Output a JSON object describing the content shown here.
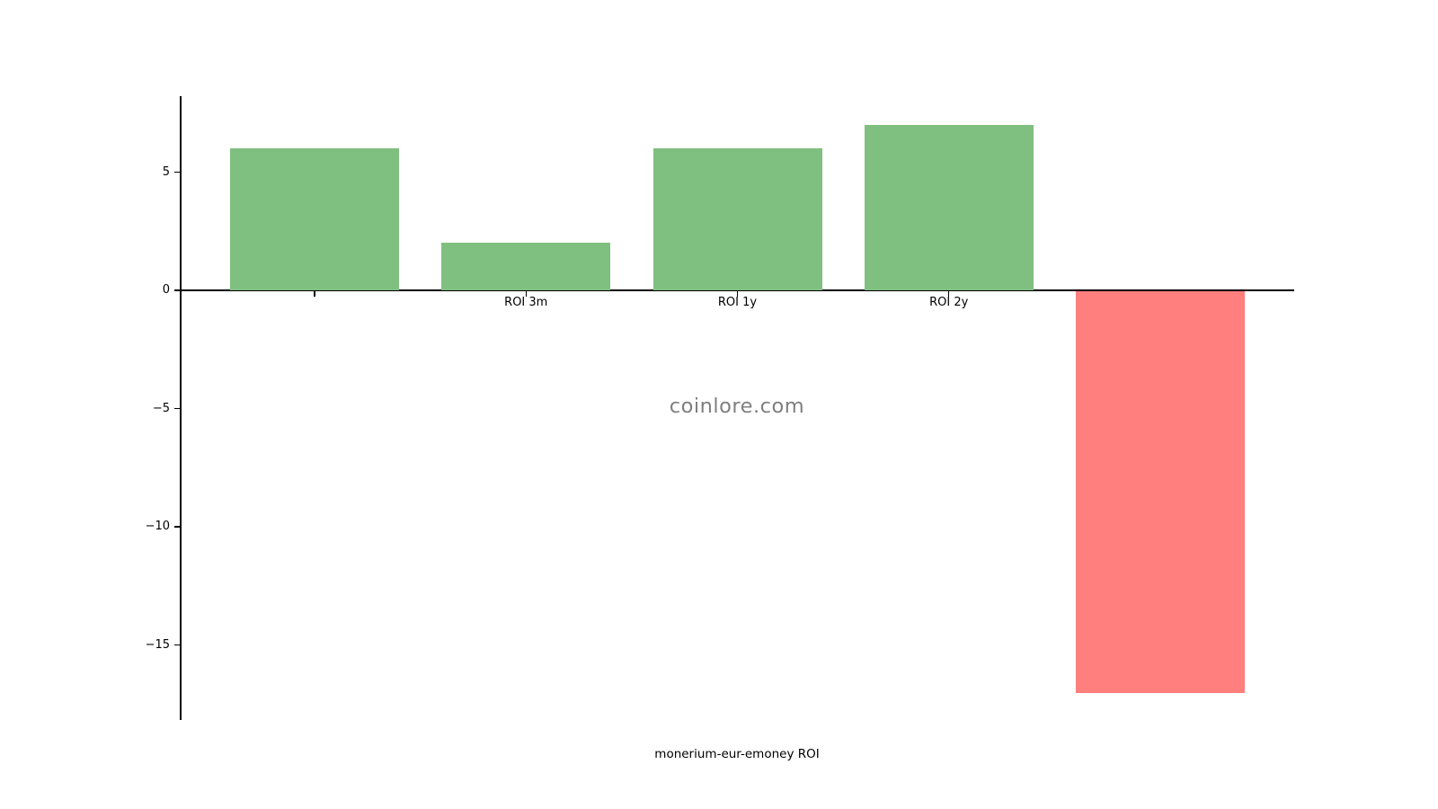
{
  "watermark": {
    "text": "coinlore.com",
    "color": "#7f7f7f"
  },
  "chart_data": {
    "type": "bar",
    "title": "monerium-eur-emoney ROI",
    "title_position": "bottom",
    "categories": [
      "",
      "ROI 3m",
      "ROI 1y",
      "ROI 2y",
      ""
    ],
    "values": [
      6,
      2,
      6,
      7,
      -17
    ],
    "yticks": {
      "values": [
        5,
        0,
        -5,
        -10,
        -15
      ],
      "labels": [
        "5",
        "0",
        "−5",
        "−10",
        "−15"
      ]
    },
    "ylim": [
      -18.2,
      8.2
    ],
    "grid": false,
    "legend": null,
    "xlabel": "monerium-eur-emoney ROI",
    "ylabel": "",
    "positive_color": "#7fbf7f",
    "negative_color": "#ff7f7f",
    "axis_color": "#000000",
    "watermark_text": "coinlore.com"
  }
}
